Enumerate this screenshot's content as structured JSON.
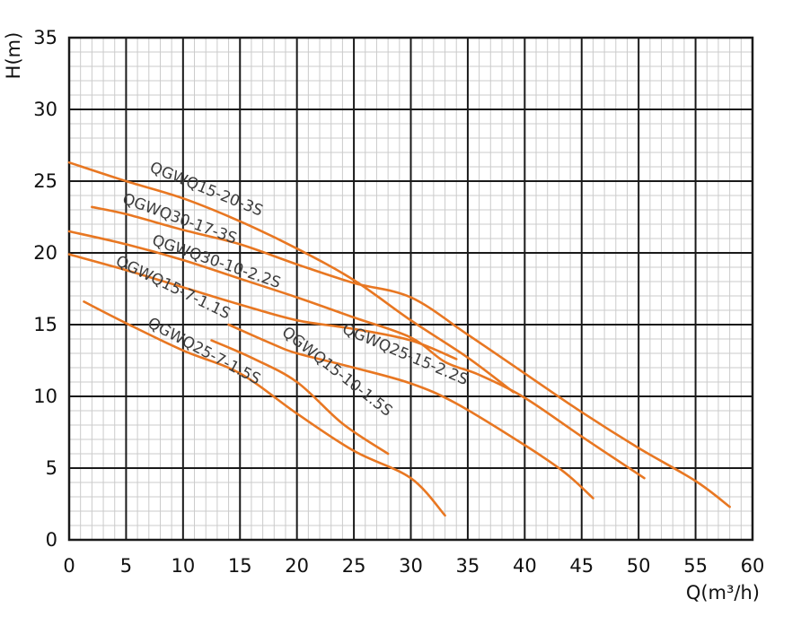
{
  "page": {
    "background": "#ffffff"
  },
  "chart_data": {
    "type": "line",
    "title": "",
    "xlabel": "Q(m³/h)",
    "ylabel": "H(m)",
    "xlim": [
      0,
      60
    ],
    "ylim": [
      0,
      35
    ],
    "x_major_ticks": [
      0,
      5,
      10,
      15,
      20,
      25,
      30,
      35,
      40,
      45,
      50,
      55,
      60
    ],
    "y_major_ticks": [
      0,
      5,
      10,
      15,
      20,
      25,
      30,
      35
    ],
    "x_minor_step": 1,
    "y_minor_step": 1,
    "grid": {
      "show_minor": true,
      "minor_color": "#cbcbcb",
      "major_color": "#1a1a1a",
      "border_color": "#1a1a1a"
    },
    "style": {
      "curve_color": "#e87722",
      "curve_width": 2.6,
      "tick_color": "#111111",
      "annotation_color": "#3c3c3c"
    },
    "legend": "none",
    "series": [
      {
        "name": "QGWQ15-20-3S",
        "points": [
          [
            0,
            26.3
          ],
          [
            5,
            25.0
          ],
          [
            10,
            23.8
          ],
          [
            15,
            22.2
          ],
          [
            20,
            20.3
          ],
          [
            25,
            18.1
          ],
          [
            30,
            15.3
          ],
          [
            35,
            12.7
          ],
          [
            39,
            10.3
          ]
        ]
      },
      {
        "name": "QGWQ30-17-3S",
        "points": [
          [
            2,
            23.2
          ],
          [
            5,
            22.7
          ],
          [
            10,
            21.6
          ],
          [
            15,
            20.6
          ],
          [
            20,
            19.2
          ],
          [
            25,
            17.9
          ],
          [
            30,
            16.9
          ],
          [
            35,
            14.3
          ],
          [
            40,
            11.6
          ],
          [
            45,
            8.9
          ],
          [
            50,
            6.4
          ],
          [
            55,
            4.1
          ],
          [
            58,
            2.3
          ]
        ]
      },
      {
        "name": "QGWQ30-10-2.2S",
        "points": [
          [
            0,
            21.5
          ],
          [
            5,
            20.6
          ],
          [
            10,
            19.5
          ],
          [
            15,
            18.2
          ],
          [
            20,
            16.9
          ],
          [
            25,
            15.5
          ],
          [
            30,
            14.1
          ],
          [
            33,
            12.4
          ],
          [
            36,
            11.5
          ],
          [
            40,
            9.9
          ],
          [
            45,
            7.2
          ],
          [
            50.5,
            4.3
          ]
        ]
      },
      {
        "name": "QGWQ15-7-1.1S",
        "points": [
          [
            0,
            19.9
          ],
          [
            5,
            18.8
          ],
          [
            10,
            17.6
          ],
          [
            15,
            16.4
          ],
          [
            20,
            15.3
          ],
          [
            25,
            14.7
          ],
          [
            30,
            13.9
          ],
          [
            34,
            12.6
          ]
        ]
      },
      {
        "name": "QGWQ25-7-1.5S",
        "points": [
          [
            1.3,
            16.6
          ],
          [
            5,
            15.1
          ],
          [
            10,
            13.2
          ],
          [
            15,
            11.6
          ],
          [
            20,
            8.8
          ],
          [
            25,
            6.2
          ],
          [
            30,
            4.3
          ],
          [
            33,
            1.7
          ]
        ]
      },
      {
        "name": "QGWQ15-10-1.5S",
        "points": [
          [
            12.5,
            13.9
          ],
          [
            16,
            12.7
          ],
          [
            20,
            11.0
          ],
          [
            24,
            8.1
          ],
          [
            28,
            6.0
          ]
        ]
      },
      {
        "name": "QGWQ25-15-2.2S",
        "points": [
          [
            14,
            15.0
          ],
          [
            18,
            13.6
          ],
          [
            20,
            13.0
          ],
          [
            25,
            12.0
          ],
          [
            30,
            10.9
          ],
          [
            34,
            9.5
          ],
          [
            40,
            6.6
          ],
          [
            43.5,
            4.7
          ],
          [
            46,
            2.9
          ]
        ]
      }
    ],
    "annotations": [
      {
        "text": "QGWQ15-20-3S",
        "q": 7.0,
        "h": 25.7,
        "angle": 22
      },
      {
        "text": "QGWQ30-17-3S",
        "q": 4.6,
        "h": 23.5,
        "angle": 20
      },
      {
        "text": "QGWQ30-10-2.2S",
        "q": 7.2,
        "h": 20.6,
        "angle": 19
      },
      {
        "text": "QGWQ15-7-1.1S",
        "q": 4.0,
        "h": 19.2,
        "angle": 26
      },
      {
        "text": "QGWQ25-7-1.5S",
        "q": 6.8,
        "h": 14.9,
        "angle": 28
      },
      {
        "text": "QGWQ15-10-1.5S",
        "q": 18.6,
        "h": 14.35,
        "angle": 38
      },
      {
        "text": "QGWQ25-15-2.2S",
        "q": 23.9,
        "h": 14.45,
        "angle": 23
      }
    ]
  }
}
